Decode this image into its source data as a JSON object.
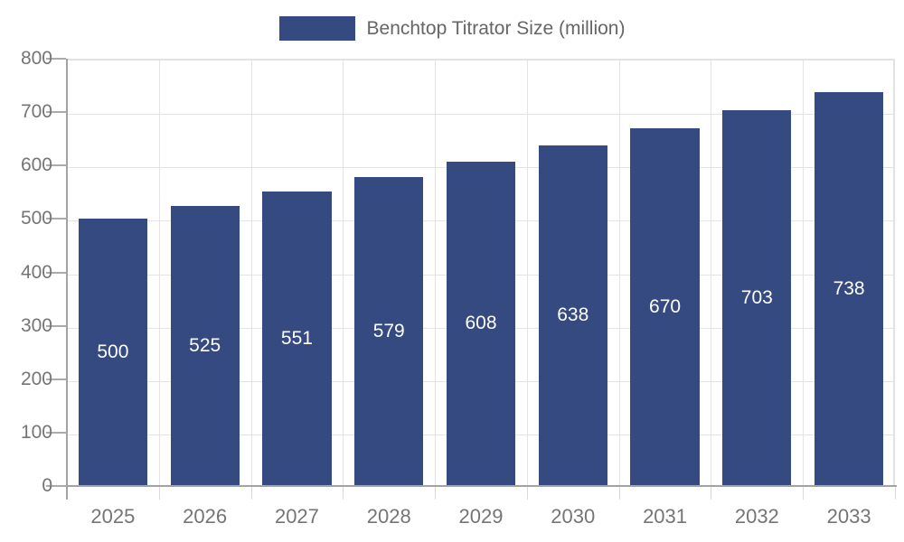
{
  "legend": {
    "label": "Benchtop Titrator Size (million)",
    "swatch_color": "#354a81"
  },
  "chart_data": {
    "type": "bar",
    "title": "",
    "categories": [
      "2025",
      "2026",
      "2027",
      "2028",
      "2029",
      "2030",
      "2031",
      "2032",
      "2033"
    ],
    "series": [
      {
        "name": "Benchtop Titrator Size (million)",
        "values": [
          500,
          525,
          551,
          579,
          608,
          638,
          670,
          703,
          738
        ],
        "color": "#354a81"
      }
    ],
    "bar_value_labels": [
      "500",
      "525",
      "551",
      "579",
      "608",
      "638",
      "670",
      "703",
      "738"
    ],
    "xlabel": "",
    "ylabel": "",
    "ylim": [
      0,
      800
    ],
    "yticks": [
      0,
      100,
      200,
      300,
      400,
      500,
      600,
      700,
      800
    ],
    "grid": "horizontal-and-vertical",
    "legend_position": "top-center",
    "colors": {
      "bar": "#354a81",
      "bar_label": "#ffffff",
      "axis": "#a3a3a3",
      "gridline": "#e4e4e4",
      "tick_label": "#757575",
      "legend_text": "#666666",
      "background": "#ffffff"
    }
  }
}
